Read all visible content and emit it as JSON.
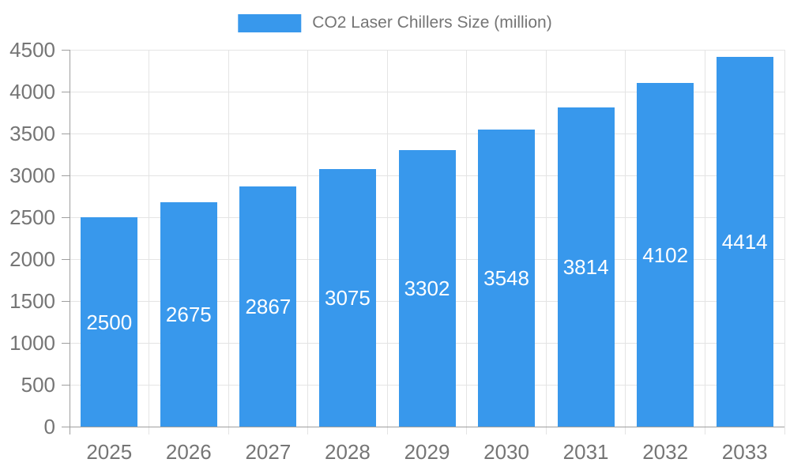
{
  "legend": {
    "label": "CO2 Laser Chillers Size (million)"
  },
  "chart_data": {
    "type": "bar",
    "title": "CO2 Laser Chillers Size (million)",
    "categories": [
      "2025",
      "2026",
      "2027",
      "2028",
      "2029",
      "2030",
      "2031",
      "2032",
      "2033"
    ],
    "values": [
      2500,
      2675,
      2867,
      3075,
      3302,
      3548,
      3814,
      4102,
      4414
    ],
    "xlabel": "",
    "ylabel": "",
    "ylim": [
      0,
      4500
    ],
    "y_ticks": [
      0,
      500,
      1000,
      1500,
      2000,
      2500,
      3000,
      3500,
      4000,
      4500
    ],
    "grid": true,
    "legend_position": "top-center",
    "bar_label_position": "inside-center",
    "colors": {
      "bar": "#3898EC",
      "bar_label": "#FFFFFF",
      "axis_line": "#9E9E9E",
      "gridline": "#E4E4E4",
      "axis_label": "#757575",
      "title": "#757575"
    }
  }
}
